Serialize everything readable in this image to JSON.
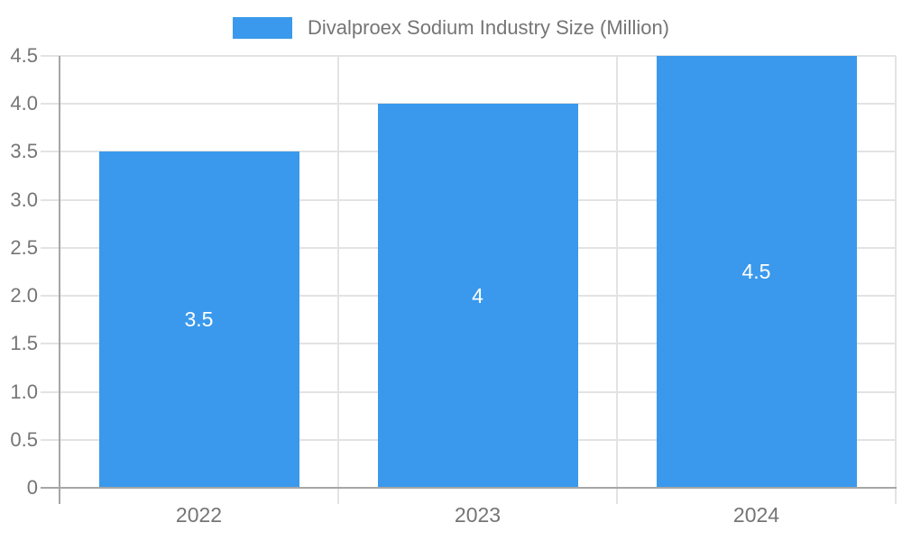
{
  "legend": {
    "label": "Divalproex Sodium Industry Size (Million)"
  },
  "colors": {
    "bar": "#3a99ec",
    "axis_line": "#a6a6a6",
    "grid_line": "#e3e3e3",
    "text": "#757575",
    "data_label": "#ffffff",
    "background": "#ffffff"
  },
  "chart_data": {
    "type": "bar",
    "title": "Divalproex Sodium Industry Size (Million)",
    "categories": [
      "2022",
      "2023",
      "2024"
    ],
    "series": [
      {
        "name": "Divalproex Sodium Industry Size (Million)",
        "values": [
          3.5,
          4,
          4.5
        ]
      }
    ],
    "data_labels": [
      "3.5",
      "4",
      "4.5"
    ],
    "y_ticks": [
      0,
      0.5,
      1,
      1.5,
      2,
      2.5,
      3,
      3.5,
      4,
      4.5
    ],
    "y_tick_labels": [
      "0",
      "0.5",
      "1.0",
      "1.5",
      "2.0",
      "2.5",
      "3.0",
      "3.5",
      "4.0",
      "4.5"
    ],
    "ylim": [
      0,
      4.5
    ],
    "xlabel": "",
    "ylabel": "",
    "grid": true,
    "legend_position": "top"
  }
}
